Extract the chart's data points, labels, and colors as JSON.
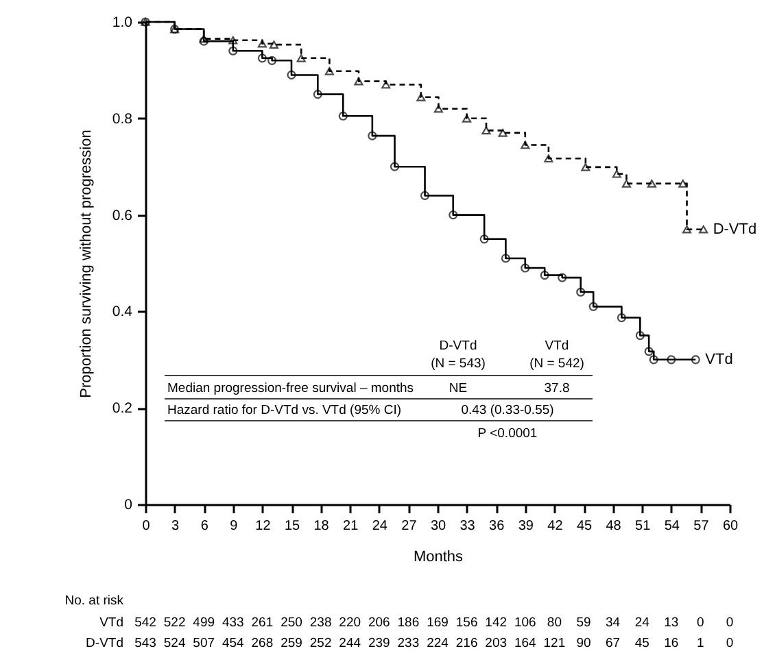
{
  "chart_data": {
    "type": "step",
    "xlabel": "Months",
    "ylabel": "Proportion surviving without progression",
    "xlim": [
      0,
      60
    ],
    "xticks": [
      0,
      3,
      6,
      9,
      12,
      15,
      18,
      21,
      24,
      27,
      30,
      33,
      36,
      39,
      42,
      45,
      48,
      51,
      54,
      57,
      60
    ],
    "ylim": [
      0,
      1
    ],
    "yticks": [
      0,
      {
        "value": 0.2,
        "label": "0.2"
      },
      {
        "value": 0.4,
        "label": "0.4"
      },
      {
        "value": 0.6,
        "label": "0.6"
      },
      {
        "value": 0.8,
        "label": "0.8"
      },
      {
        "value": 1,
        "label": "1.0"
      }
    ],
    "grid": false,
    "legend": false,
    "series": [
      {
        "name": "VTd",
        "color": "#000000",
        "marker": "circle",
        "line_style": "solid",
        "x": [
          0,
          3,
          6,
          9,
          12,
          13,
          15,
          17.7,
          20.3,
          23.3,
          25.6,
          28.7,
          31.6,
          34.8,
          37,
          39,
          41,
          42.8,
          44.7,
          46,
          48.9,
          50.8,
          51.7,
          52.2,
          54,
          56.5
        ],
        "values": [
          1.0,
          0.985,
          0.96,
          0.94,
          0.925,
          0.92,
          0.89,
          0.85,
          0.805,
          0.764,
          0.7,
          0.64,
          0.6,
          0.55,
          0.51,
          0.49,
          0.475,
          0.47,
          0.44,
          0.41,
          0.387,
          0.35,
          0.317,
          0.3,
          0.3,
          0.3
        ]
      },
      {
        "name": "D-VTd",
        "color": "#000000",
        "marker": "triangle",
        "line_style": "dashed",
        "x": [
          0,
          3,
          6,
          9,
          12,
          13.2,
          16,
          18.9,
          21.9,
          24.7,
          28.3,
          30.1,
          33,
          35,
          36.7,
          39,
          41.4,
          45.2,
          48.4,
          49.4,
          52,
          55.2,
          55.6,
          57.3
        ],
        "values": [
          1.0,
          0.985,
          0.965,
          0.962,
          0.955,
          0.953,
          0.925,
          0.898,
          0.877,
          0.87,
          0.844,
          0.82,
          0.8,
          0.775,
          0.77,
          0.745,
          0.717,
          0.699,
          0.685,
          0.665,
          0.665,
          0.665,
          0.57,
          0.57
        ]
      }
    ],
    "annotations": [
      "D-VTd",
      "(N = 543)",
      "VTd",
      "(N = 542)",
      "Median progression-free survival – months",
      "NE",
      "37.8",
      "Hazard ratio for D-VTd vs. VTd (95% CI)",
      "0.43 (0.33-0.55)",
      "P <0.0001",
      "No. at risk",
      "VTd 542 522 499 433 261 250 238 220 206 186 169 156 142 106 80 59 34 24 13 0 0",
      "D-VTd 543 524 507 454 268 259 252 244 239 233 224 216 203 164 121 90 67 45 16 1 0"
    ]
  }
}
